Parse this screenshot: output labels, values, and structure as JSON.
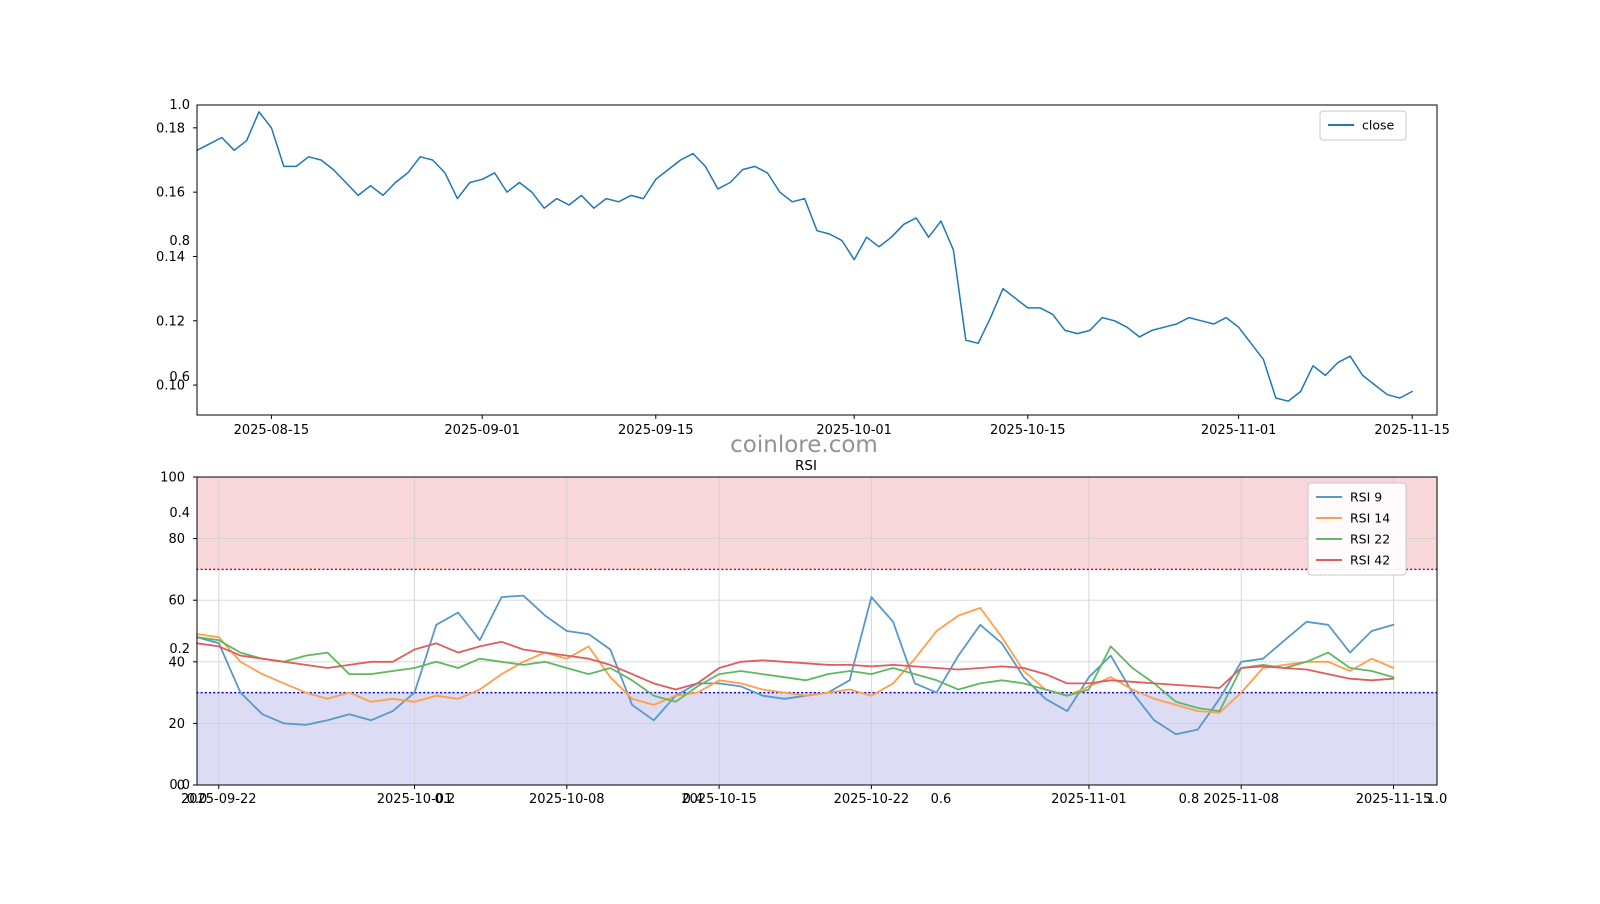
{
  "watermark": {
    "text": "coinlore.com"
  },
  "figure_overlay_axis": {
    "x_tick_labels": [
      "0.0",
      "0.2",
      "0.4",
      "0.6",
      "0.8",
      "1.0"
    ],
    "y_tick_labels": [
      "0.0",
      "0.2",
      "0.4",
      "0.6",
      "0.8",
      "1.0"
    ]
  },
  "chart_data": [
    {
      "id": "price",
      "type": "line",
      "title": "",
      "legend_position": "upper right",
      "grid": false,
      "x_domain": [
        "2025-08-09",
        "2025-11-17"
      ],
      "ylim": [
        0.0907,
        0.1871
      ],
      "x_ticks": [
        "2025-08-15",
        "2025-09-01",
        "2025-09-15",
        "2025-10-01",
        "2025-10-15",
        "2025-11-01",
        "2025-11-15"
      ],
      "y_ticks": [
        {
          "value": 0.1,
          "label": "0.10"
        },
        {
          "value": 0.12,
          "label": "0.12"
        },
        {
          "value": 0.14,
          "label": "0.14"
        },
        {
          "value": 0.16,
          "label": "0.16"
        },
        {
          "value": 0.18,
          "label": "0.18"
        }
      ],
      "series": [
        {
          "name": "close",
          "color": "#1f77b4",
          "width": 1.5,
          "start": "2025-08-09",
          "values": [
            0.173,
            0.175,
            0.177,
            0.173,
            0.176,
            0.185,
            0.18,
            0.168,
            0.168,
            0.171,
            0.17,
            0.167,
            0.163,
            0.159,
            0.162,
            0.159,
            0.163,
            0.166,
            0.171,
            0.17,
            0.166,
            0.158,
            0.163,
            0.164,
            0.166,
            0.16,
            0.163,
            0.16,
            0.155,
            0.158,
            0.156,
            0.159,
            0.155,
            0.158,
            0.157,
            0.159,
            0.158,
            0.164,
            0.167,
            0.17,
            0.172,
            0.168,
            0.161,
            0.163,
            0.167,
            0.168,
            0.166,
            0.16,
            0.157,
            0.158,
            0.148,
            0.147,
            0.145,
            0.139,
            0.146,
            0.143,
            0.146,
            0.15,
            0.152,
            0.146,
            0.151,
            0.142,
            0.114,
            0.113,
            0.121,
            0.13,
            0.127,
            0.124,
            0.124,
            0.122,
            0.117,
            0.116,
            0.117,
            0.121,
            0.12,
            0.118,
            0.115,
            0.117,
            0.118,
            0.119,
            0.121,
            0.12,
            0.119,
            0.121,
            0.118,
            0.113,
            0.108,
            0.096,
            0.095,
            0.098,
            0.106,
            0.103,
            0.107,
            0.109,
            0.103,
            0.1,
            0.097,
            0.096,
            0.098
          ]
        }
      ]
    },
    {
      "id": "rsi",
      "type": "line",
      "title": "RSI",
      "legend_position": "upper right",
      "grid": true,
      "x_domain": [
        "2025-09-21",
        "2025-11-17"
      ],
      "ylim": [
        0,
        100
      ],
      "x_ticks": [
        "2025-09-22",
        "2025-10-01",
        "2025-10-08",
        "2025-10-15",
        "2025-10-22",
        "2025-11-01",
        "2025-11-08",
        "2025-11-15"
      ],
      "y_ticks": [
        {
          "value": 0,
          "label": "0"
        },
        {
          "value": 20,
          "label": "20"
        },
        {
          "value": 40,
          "label": "40"
        },
        {
          "value": 60,
          "label": "60"
        },
        {
          "value": 80,
          "label": "80"
        },
        {
          "value": 100,
          "label": "100"
        }
      ],
      "bands": [
        {
          "from": 70,
          "to": 100,
          "color": "#f8d7da",
          "meaning": "overbought zone"
        },
        {
          "from": 0,
          "to": 30,
          "color": "#dcdcf5",
          "meaning": "oversold zone"
        }
      ],
      "hlines": [
        {
          "y": 70,
          "color": "#d40000",
          "style": "dotted"
        },
        {
          "y": 30,
          "color": "#0000cc",
          "style": "dotted"
        }
      ],
      "series": [
        {
          "name": "RSI 9",
          "color": "#5799c7",
          "width": 1.8,
          "start": "2025-09-21",
          "values": [
            48,
            46,
            30,
            23,
            20,
            19.5,
            21,
            23,
            21,
            24,
            30,
            52,
            56,
            47,
            61,
            61.5,
            55,
            50,
            49,
            44,
            26,
            21,
            29,
            33,
            33,
            32,
            29,
            28,
            29,
            30,
            34,
            61,
            53,
            33,
            30,
            42,
            52,
            46,
            35,
            28,
            24,
            35,
            42,
            30,
            21,
            16.5,
            18,
            28,
            40,
            41,
            47,
            53,
            52,
            43,
            50,
            52
          ]
        },
        {
          "name": "RSI 14",
          "color": "#ff9f4a",
          "width": 1.8,
          "start": "2025-09-21",
          "values": [
            49,
            48,
            40,
            36,
            33,
            30,
            28,
            30,
            27,
            28,
            27,
            29,
            28,
            31,
            36,
            40,
            43,
            41,
            45,
            35,
            28,
            26,
            29,
            30,
            34,
            33,
            31,
            30,
            29,
            30,
            31,
            29,
            33,
            41,
            50,
            55,
            57.5,
            48,
            37,
            31,
            29,
            32,
            35,
            31,
            28,
            26,
            24,
            23.5,
            30,
            38,
            39,
            40,
            40,
            37,
            41,
            38
          ]
        },
        {
          "name": "RSI 22",
          "color": "#61b861",
          "width": 1.8,
          "start": "2025-09-21",
          "values": [
            48,
            47,
            43,
            41,
            40,
            42,
            43,
            36,
            36,
            37,
            38,
            40,
            38,
            41,
            40,
            39,
            40,
            38,
            36,
            38,
            34,
            29,
            27,
            32,
            36,
            37,
            36,
            35,
            34,
            36,
            37,
            36,
            38,
            36,
            34,
            31,
            33,
            34,
            33,
            31,
            29,
            31,
            45,
            38,
            33,
            27,
            25,
            24,
            38,
            39,
            38,
            40,
            43,
            38,
            37,
            35
          ]
        },
        {
          "name": "RSI 42",
          "color": "#e05d5e",
          "width": 1.8,
          "start": "2025-09-21",
          "values": [
            46,
            45,
            42,
            41,
            40,
            39,
            38,
            39,
            40,
            40,
            44,
            46,
            43,
            45,
            46.5,
            44,
            43,
            42,
            41,
            39,
            36,
            33,
            31,
            33,
            38,
            40,
            40.5,
            40,
            39.5,
            39,
            39,
            38.5,
            39,
            38.5,
            38,
            37.5,
            38,
            38.5,
            38,
            36,
            33,
            33,
            34,
            33.5,
            33,
            32.5,
            32,
            31.5,
            38,
            38.5,
            38,
            37.5,
            36,
            34.5,
            34,
            34.5
          ]
        }
      ]
    }
  ]
}
